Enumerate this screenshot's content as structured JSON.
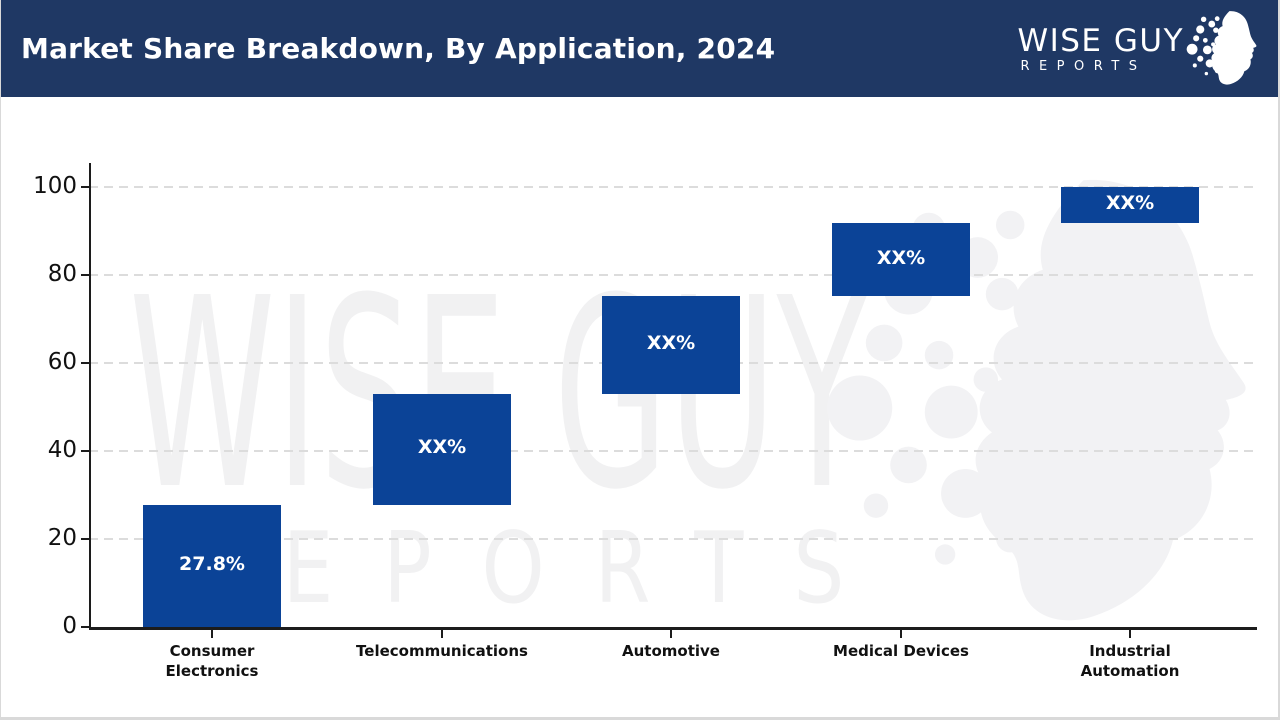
{
  "header": {
    "title": "Market Share Breakdown, By Application, 2024",
    "logo": {
      "line1": "WISE GUY",
      "line2": "REPORTS"
    }
  },
  "watermark": {
    "line1": "WISE GUY",
    "line2": "REPORTS"
  },
  "colors": {
    "header_bg": "#1f3864",
    "bar": "#0b4397",
    "bar_label": "#ffffff",
    "grid": "#dcdcdc",
    "axis": "#1c1c1c",
    "watermark": "#f1f1f2"
  },
  "chart_data": {
    "type": "bar",
    "subtype": "waterfall-stacked-steps",
    "title": "Market Share Breakdown, By Application, 2024",
    "categories": [
      "Consumer Electronics",
      "Telecommunications",
      "Automotive",
      "Medical Devices",
      "Industrial Automation"
    ],
    "series": [
      {
        "name": "Consumer Electronics",
        "start": 0,
        "end": 27.8,
        "label": "27.8%"
      },
      {
        "name": "Telecommunications",
        "start": 27.8,
        "end": 53.0,
        "label": "XX%"
      },
      {
        "name": "Automotive",
        "start": 53.0,
        "end": 75.2,
        "label": "XX%"
      },
      {
        "name": "Medical Devices",
        "start": 75.2,
        "end": 91.8,
        "label": "XX%"
      },
      {
        "name": "Industrial Automation",
        "start": 91.8,
        "end": 100,
        "label": "XX%"
      }
    ],
    "xlabel": "",
    "ylabel": "",
    "yticks": [
      0,
      20,
      40,
      60,
      80,
      100
    ],
    "ylim": [
      0,
      100
    ],
    "grid": "horizontal-dashed",
    "legend": "none"
  }
}
